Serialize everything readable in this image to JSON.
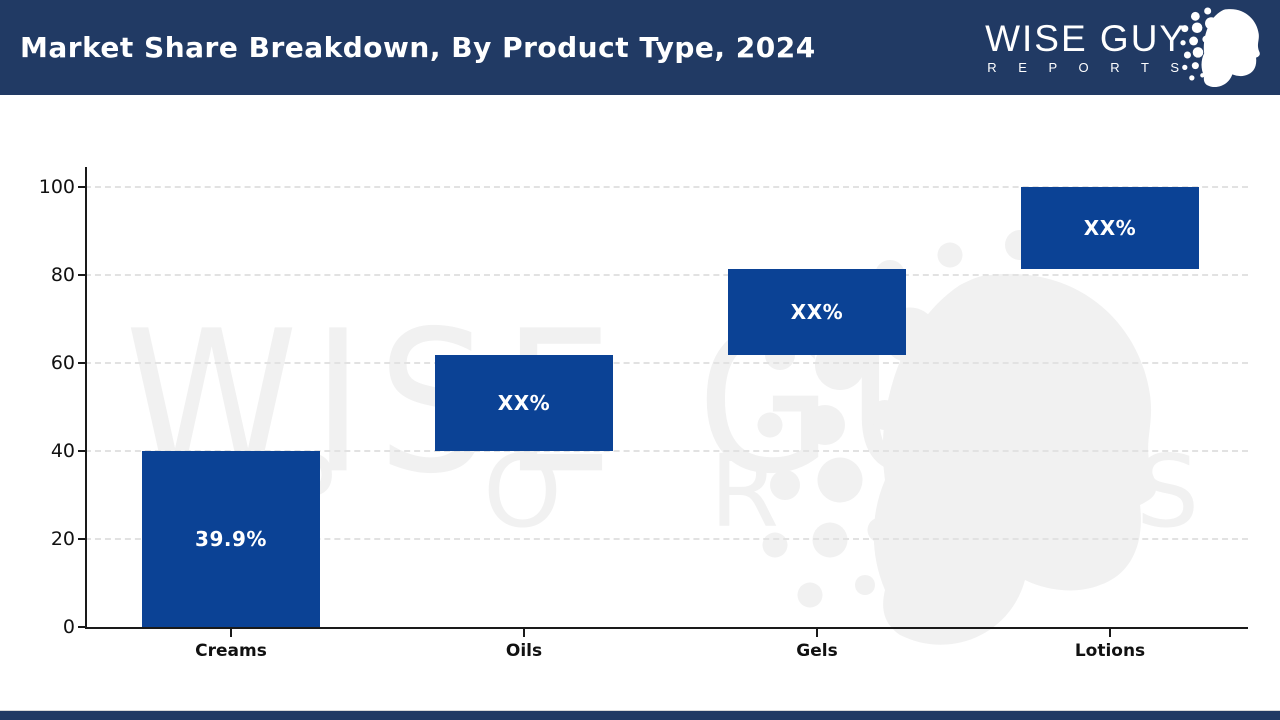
{
  "header": {
    "title": "Market Share Breakdown, By Product Type, 2024",
    "logo": {
      "line1": "WISE GUY",
      "line2": "R E P O R T S"
    }
  },
  "watermark": {
    "line1": "WISE GUY",
    "line2": "P O R T S"
  },
  "colors": {
    "header_bg": "#213a64",
    "footer_bg": "#213a64",
    "bar": "#0b4295",
    "bar_label_text": "#ffffff",
    "axis": "#1a1a1a",
    "gridline": "#e2e2e2",
    "watermark": "#f1f1f1",
    "title_text": "#ffffff"
  },
  "chart_data": {
    "type": "bar",
    "subtype": "waterfall",
    "title": "Market Share Breakdown, By Product Type, 2024",
    "xlabel": "",
    "ylabel": "",
    "ylim": [
      0,
      100
    ],
    "yticks": [
      0,
      20,
      40,
      60,
      80,
      100
    ],
    "grid": "horizontal dashed",
    "legend": "none",
    "categories": [
      "Creams",
      "Oils",
      "Gels",
      "Lotions"
    ],
    "segments": [
      {
        "category": "Creams",
        "start": 0,
        "end": 39.9,
        "value": 39.9,
        "label": "39.9%"
      },
      {
        "category": "Oils",
        "start": 39.9,
        "end": 61.8,
        "value": 21.9,
        "label": "XX%"
      },
      {
        "category": "Gels",
        "start": 61.8,
        "end": 81.4,
        "value": 19.6,
        "label": "XX%"
      },
      {
        "category": "Lotions",
        "start": 81.4,
        "end": 100,
        "value": 18.6,
        "label": "XX%"
      }
    ]
  }
}
